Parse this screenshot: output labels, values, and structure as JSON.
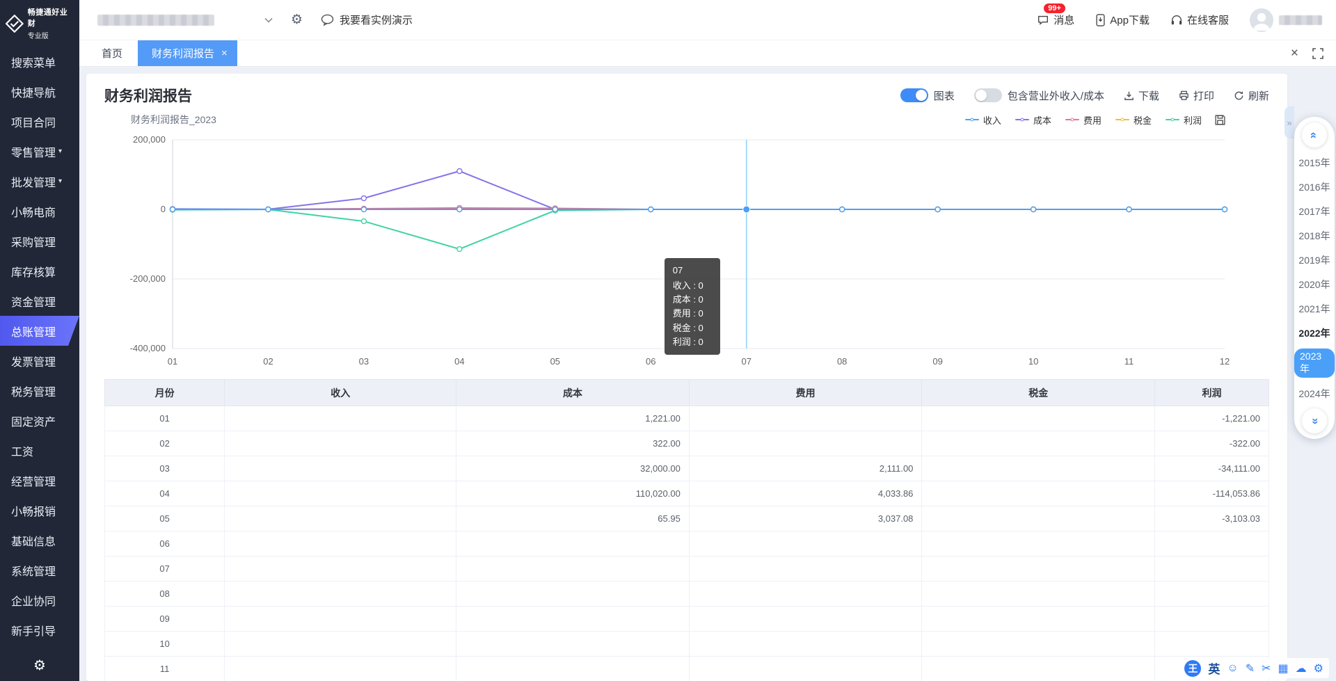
{
  "sidebar": {
    "logo_title": "畅捷通好业财",
    "logo_subtitle": "专业版",
    "caret_glyph": "▾",
    "gear_glyph": "⚙",
    "items": [
      {
        "label": "搜索菜单"
      },
      {
        "label": "快捷导航"
      },
      {
        "label": "项目合同"
      },
      {
        "label": "零售管理",
        "caret": true
      },
      {
        "label": "批发管理",
        "caret": true
      },
      {
        "label": "小畅电商"
      },
      {
        "label": "采购管理"
      },
      {
        "label": "库存核算"
      },
      {
        "label": "资金管理"
      },
      {
        "label": "总账管理",
        "active": true
      },
      {
        "label": "发票管理"
      },
      {
        "label": "税务管理"
      },
      {
        "label": "固定资产"
      },
      {
        "label": "工资"
      },
      {
        "label": "经营管理"
      },
      {
        "label": "小畅报销"
      },
      {
        "label": "基础信息"
      },
      {
        "label": "系统管理"
      },
      {
        "label": "企业协同"
      },
      {
        "label": "新手引导"
      }
    ]
  },
  "topbar": {
    "gear_glyph": "⚙",
    "demo_label": "我要看实例演示",
    "messages_label": "消息",
    "messages_badge": "99+",
    "app_download_label": "App下载",
    "support_label": "在线客服"
  },
  "tabs": {
    "home": "首页",
    "active": "财务利润报告",
    "close_glyph": "×"
  },
  "page": {
    "title": "财务利润报告",
    "toggle_chart": "图表",
    "toggle_nonoperating": "包含营业外收入/成本",
    "download": "下载",
    "print": "打印",
    "refresh": "刷新"
  },
  "chart_data": {
    "type": "line",
    "title": "财务利润报告_2023",
    "categories": [
      "01",
      "02",
      "03",
      "04",
      "05",
      "06",
      "07",
      "08",
      "09",
      "10",
      "11",
      "12"
    ],
    "series": [
      {
        "name": "收入",
        "color": "#4aa0f8",
        "values": [
          0,
          0,
          0,
          0,
          0,
          0,
          0,
          0,
          0,
          0,
          0,
          0
        ]
      },
      {
        "name": "成本",
        "color": "#8672e8",
        "values": [
          1221,
          322,
          32000,
          110020,
          65.95,
          0,
          0,
          0,
          0,
          0,
          0,
          0
        ]
      },
      {
        "name": "费用",
        "color": "#e8738f",
        "values": [
          0,
          0,
          2111,
          4033.86,
          3037.08,
          0,
          0,
          0,
          0,
          0,
          0,
          0
        ]
      },
      {
        "name": "税金",
        "color": "#f3bf2a",
        "values": [
          0,
          0,
          0,
          0,
          0,
          0,
          0,
          0,
          0,
          0,
          0,
          0
        ]
      },
      {
        "name": "利润",
        "color": "#3fd3a6",
        "values": [
          -1221,
          -322,
          -34111,
          -114053.86,
          -3103.03,
          0,
          0,
          0,
          0,
          0,
          0,
          0
        ]
      }
    ],
    "ylim": [
      -400000,
      200000
    ],
    "yticks": [
      200000,
      0,
      -200000,
      -400000
    ],
    "ytick_labels": [
      "200,000",
      "0",
      "-200,000",
      "-400,000"
    ],
    "grid": true,
    "legend_position": "top-right",
    "tooltip": {
      "x": "07",
      "title": "07",
      "rows": [
        {
          "label": "收入",
          "value": "0"
        },
        {
          "label": "成本",
          "value": "0"
        },
        {
          "label": "费用",
          "value": "0"
        },
        {
          "label": "税金",
          "value": "0"
        },
        {
          "label": "利润",
          "value": "0"
        }
      ]
    }
  },
  "table": {
    "headers": [
      "月份",
      "收入",
      "成本",
      "费用",
      "税金",
      "利润"
    ],
    "col_widths": [
      "10.3%",
      "19.9%",
      "20%",
      "20%",
      "20%",
      "9.8%"
    ],
    "rows": [
      [
        "01",
        "",
        "1,221.00",
        "",
        "",
        "-1,221.00"
      ],
      [
        "02",
        "",
        "322.00",
        "",
        "",
        "-322.00"
      ],
      [
        "03",
        "",
        "32,000.00",
        "2,111.00",
        "",
        "-34,111.00"
      ],
      [
        "04",
        "",
        "110,020.00",
        "4,033.86",
        "",
        "-114,053.86"
      ],
      [
        "05",
        "",
        "65.95",
        "3,037.08",
        "",
        "-3,103.03"
      ],
      [
        "06",
        "",
        "",
        "",
        "",
        ""
      ],
      [
        "07",
        "",
        "",
        "",
        "",
        ""
      ],
      [
        "08",
        "",
        "",
        "",
        "",
        ""
      ],
      [
        "09",
        "",
        "",
        "",
        "",
        ""
      ],
      [
        "10",
        "",
        "",
        "",
        "",
        ""
      ],
      [
        "11",
        "",
        "",
        "",
        "",
        ""
      ]
    ]
  },
  "year_panel": {
    "collapse_glyph": "»",
    "scroll_glyph": "«",
    "years": [
      "2015年",
      "2016年",
      "2017年",
      "2018年",
      "2019年",
      "2020年",
      "2021年",
      "2022年",
      "2023年",
      "2024年"
    ],
    "selected": "2023年",
    "bold": "2022年"
  },
  "ime_bar": {
    "logo": "王",
    "mode": "英",
    "icons": [
      {
        "name": "smiley-icon",
        "glyph": "☺"
      },
      {
        "name": "pen-icon",
        "glyph": "✎"
      },
      {
        "name": "scissors-icon",
        "glyph": "✂"
      },
      {
        "name": "keyboard-icon",
        "glyph": "▦"
      },
      {
        "name": "cloud-icon",
        "glyph": "☁"
      },
      {
        "name": "settings-icon",
        "glyph": "⚙"
      }
    ]
  },
  "colors": {
    "sidebar_bg": "#212737",
    "active_menu": "#5b64f0",
    "active_tab": "#549bf8",
    "accent_blue": "#3d8cf7",
    "selected_year": "#4aa0f8",
    "badge_red": "#f5222d"
  }
}
